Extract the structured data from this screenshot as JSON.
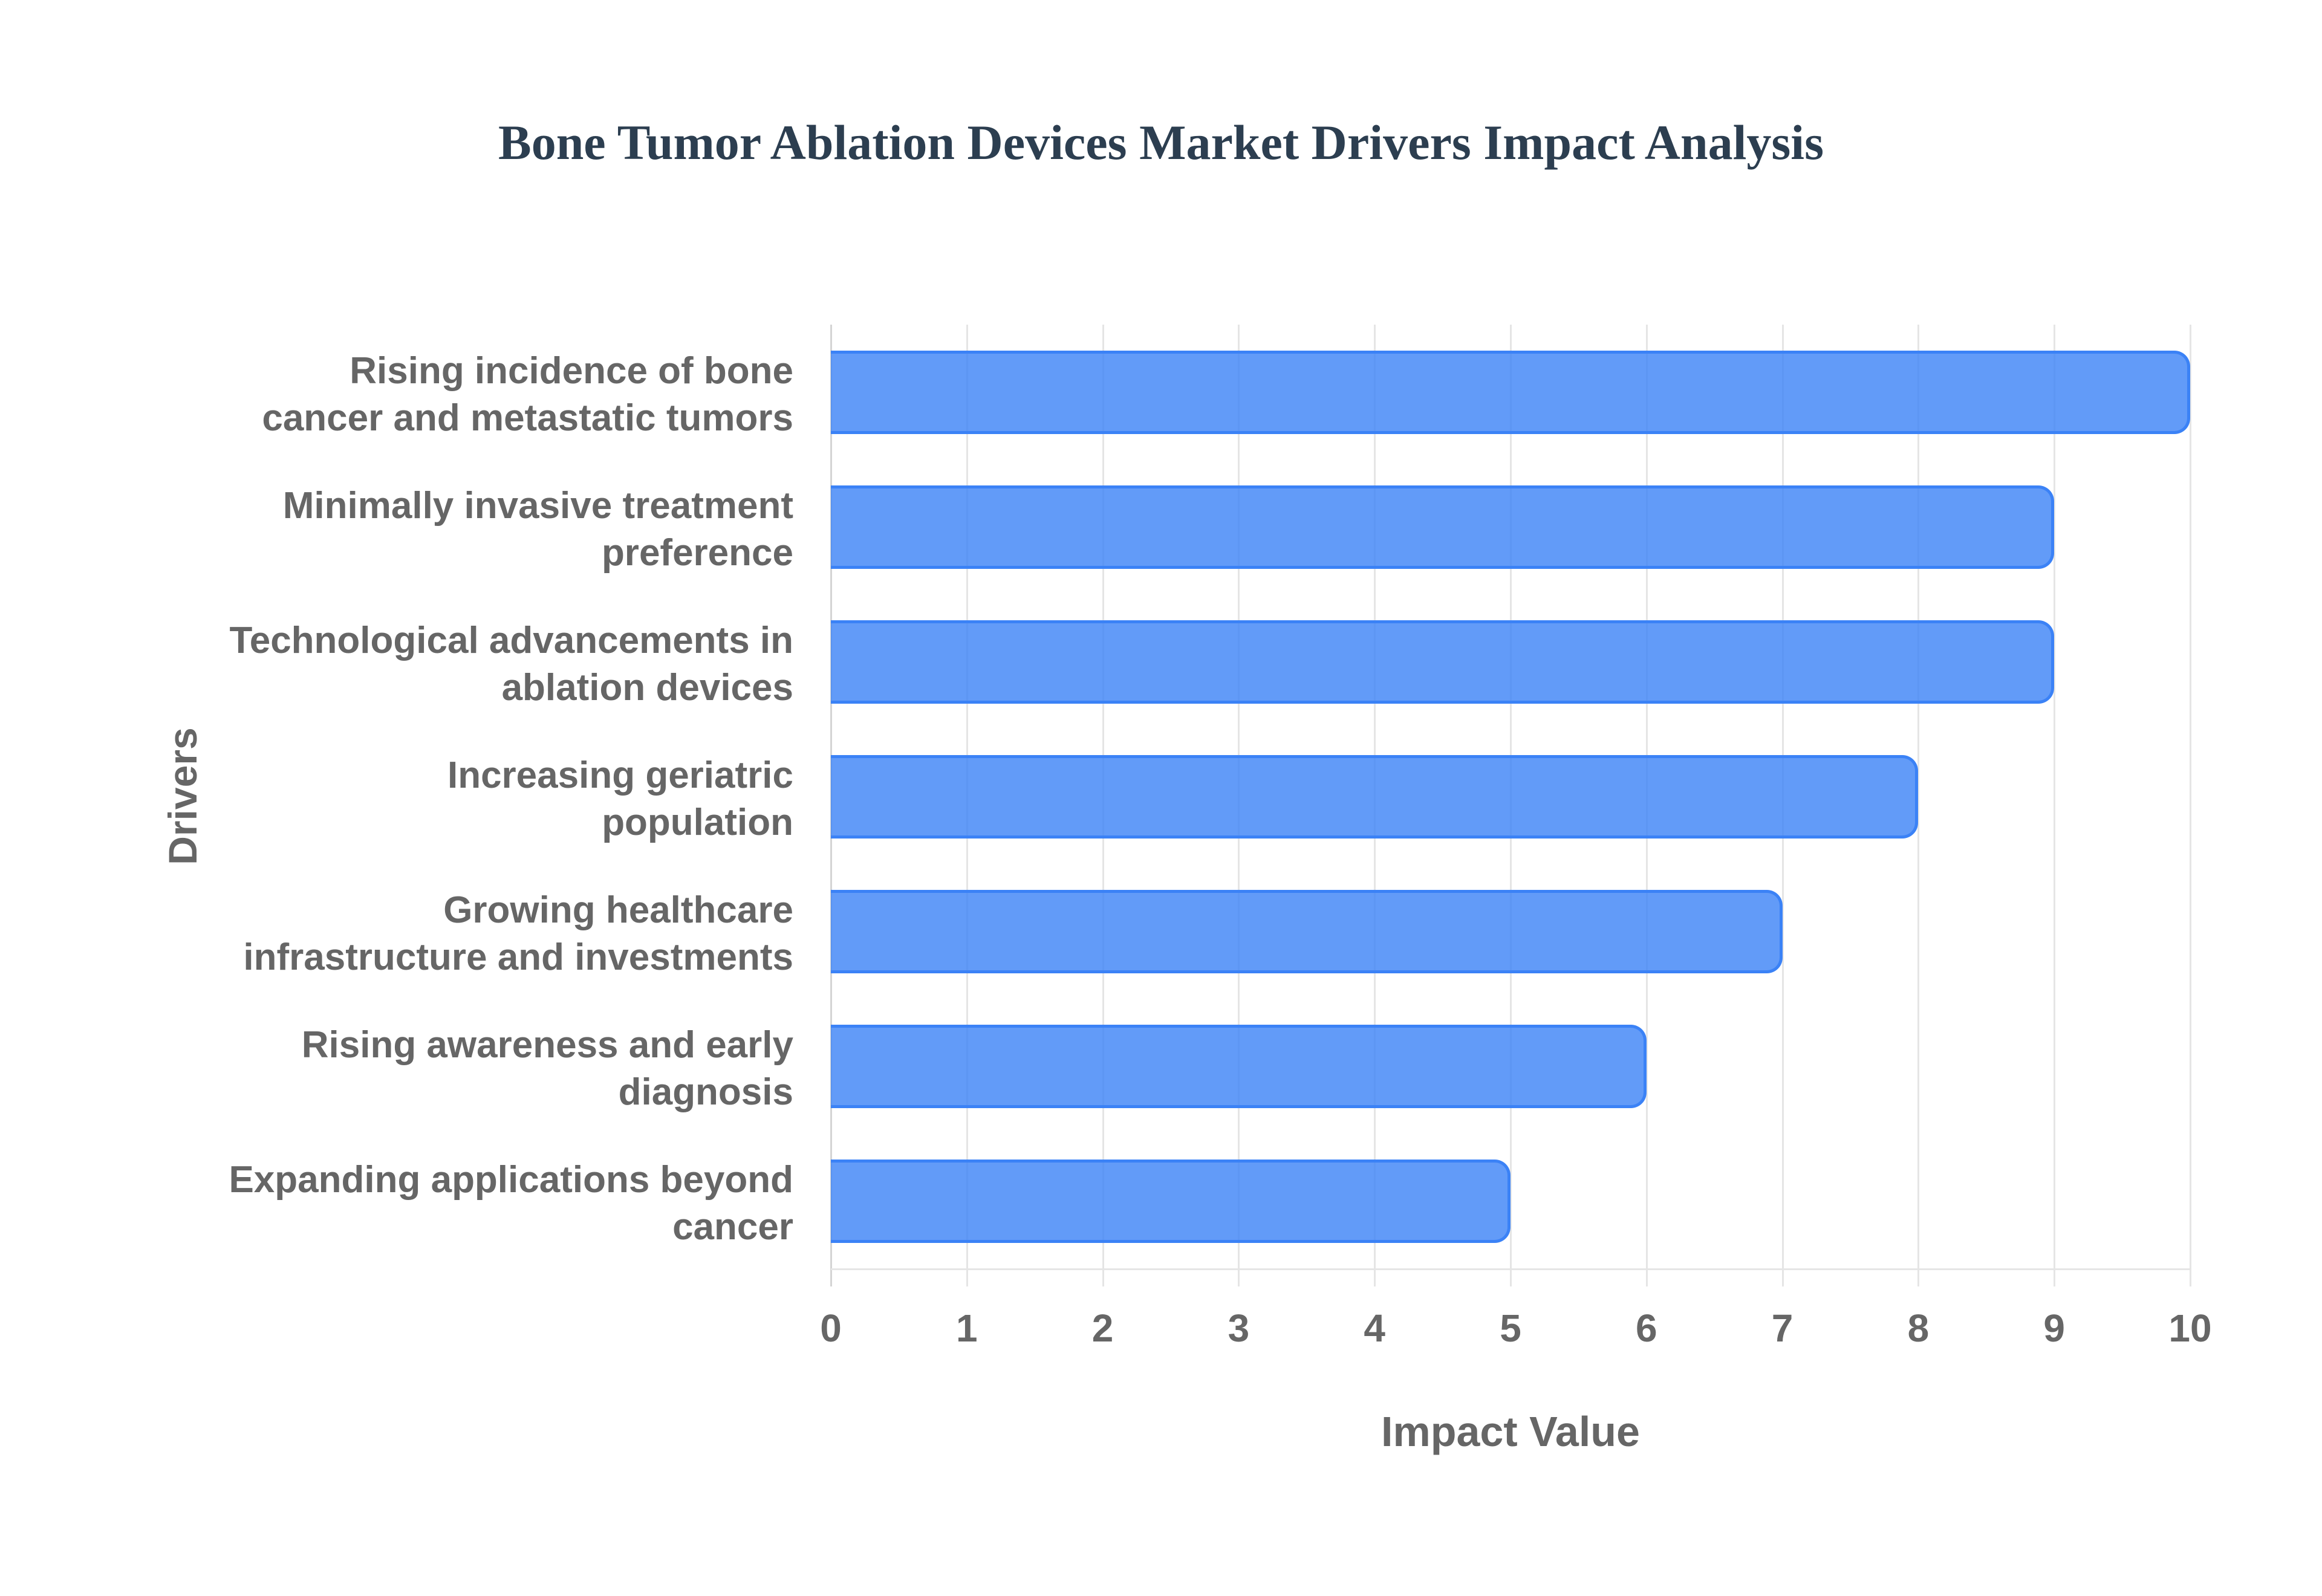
{
  "title": "Bone Tumor Ablation Devices Market Drivers Impact Analysis",
  "colors": {
    "title": "#2c3e50",
    "bar_fill": "rgba(59,130,246,0.8)",
    "bar_border": "#3b82f6",
    "axis_text": "#666666",
    "grid": "#e5e5e5"
  },
  "axes": {
    "x_title": "Impact Value",
    "y_title": "Drivers",
    "x_ticks": [
      "0",
      "1",
      "2",
      "3",
      "4",
      "5",
      "6",
      "7",
      "8",
      "9",
      "10"
    ]
  },
  "categories": [
    {
      "lines": [
        "Rising incidence of bone",
        "cancer and metastatic tumors"
      ]
    },
    {
      "lines": [
        "Minimally invasive treatment",
        "preference"
      ]
    },
    {
      "lines": [
        "Technological advancements in",
        "ablation devices"
      ]
    },
    {
      "lines": [
        "Increasing geriatric",
        "population"
      ]
    },
    {
      "lines": [
        "Growing healthcare",
        "infrastructure and investments"
      ]
    },
    {
      "lines": [
        "Rising awareness and early",
        "diagnosis"
      ]
    },
    {
      "lines": [
        "Expanding applications beyond",
        "cancer"
      ]
    }
  ],
  "chart_data": {
    "type": "bar",
    "orientation": "horizontal",
    "title": "Bone Tumor Ablation Devices Market Drivers Impact Analysis",
    "xlabel": "Impact Value",
    "ylabel": "Drivers",
    "categories": [
      "Rising incidence of bone cancer and metastatic tumors",
      "Minimally invasive treatment preference",
      "Technological advancements in ablation devices",
      "Increasing geriatric population",
      "Growing healthcare infrastructure and investments",
      "Rising awareness and early diagnosis",
      "Expanding applications beyond cancer"
    ],
    "values": [
      10,
      9,
      9,
      8,
      7,
      6,
      5
    ],
    "xlim": [
      0,
      10
    ],
    "x_ticks": [
      0,
      1,
      2,
      3,
      4,
      5,
      6,
      7,
      8,
      9,
      10
    ],
    "grid": true,
    "legend": "none"
  }
}
